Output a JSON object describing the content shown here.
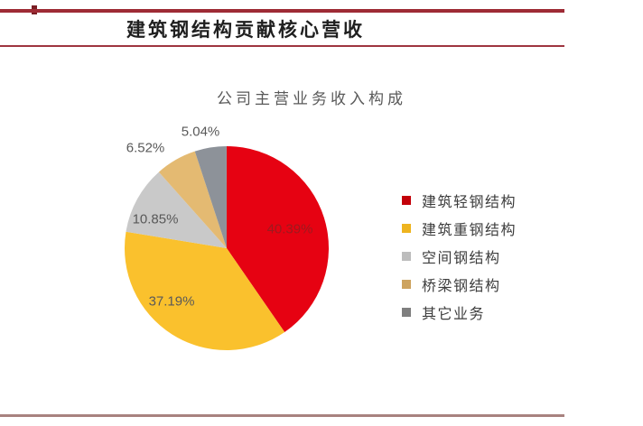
{
  "page": {
    "header": {
      "title": "建筑钢结构贡献核心营收"
    },
    "colors": {
      "header_line": "#9e2b35",
      "header_underline": "#9e3540",
      "footer_line": "#a8827f",
      "accent_tick": "#7a1e24",
      "title_text": "#1f1f1f"
    }
  },
  "chart_data": {
    "type": "pie",
    "title": "公司主营业务收入构成",
    "title_color": "#595959",
    "legend_position": "right",
    "label_color": "#595959",
    "inside_label_color": "#9c1a1f",
    "categories": [
      "建筑轻钢结构",
      "建筑重钢结构",
      "空间钢结构",
      "桥梁钢结构",
      "其它业务"
    ],
    "values": [
      40.39,
      37.19,
      10.85,
      6.52,
      5.04
    ],
    "value_labels": [
      "40.39%",
      "37.19%",
      "10.85%",
      "6.52%",
      "5.04%"
    ],
    "slice_colors": [
      "#e60212",
      "#fac12d",
      "#c9c9c9",
      "#e4ba72",
      "#8d9299"
    ],
    "legend_colors": [
      "#c3000a",
      "#eeb41f",
      "#bdbdbd",
      "#cda35f",
      "#7f7f7f"
    ]
  }
}
